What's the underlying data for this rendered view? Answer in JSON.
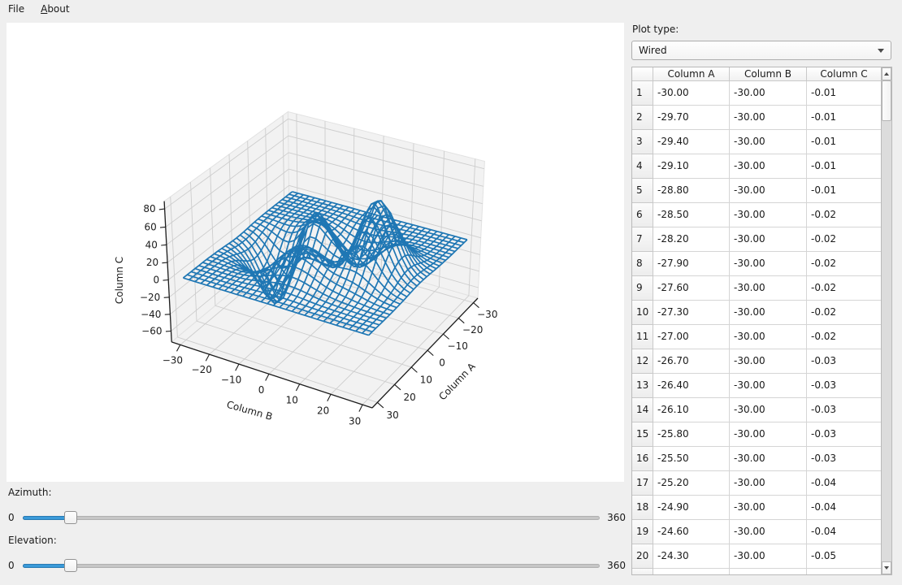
{
  "menu": {
    "file_label": "File",
    "about_mnemonic": "A",
    "about_rest": "bout"
  },
  "controls": {
    "azimuth_label": "Azimuth:",
    "azimuth_min": "0",
    "azimuth_max": "360",
    "azimuth_value": 30,
    "elevation_label": "Elevation:",
    "elevation_min": "0",
    "elevation_max": "360",
    "elevation_value": 30,
    "accent_color": "#3a9ad9"
  },
  "right_panel": {
    "plot_type_label": "Plot type:",
    "plot_type_value": "Wired",
    "table": {
      "columns": [
        "Column A",
        "Column B",
        "Column C"
      ],
      "rows": [
        [
          "1",
          "-30.00",
          "-30.00",
          "-0.01"
        ],
        [
          "2",
          "-29.70",
          "-30.00",
          "-0.01"
        ],
        [
          "3",
          "-29.40",
          "-30.00",
          "-0.01"
        ],
        [
          "4",
          "-29.10",
          "-30.00",
          "-0.01"
        ],
        [
          "5",
          "-28.80",
          "-30.00",
          "-0.01"
        ],
        [
          "6",
          "-28.50",
          "-30.00",
          "-0.02"
        ],
        [
          "7",
          "-28.20",
          "-30.00",
          "-0.02"
        ],
        [
          "8",
          "-27.90",
          "-30.00",
          "-0.02"
        ],
        [
          "9",
          "-27.60",
          "-30.00",
          "-0.02"
        ],
        [
          "10",
          "-27.30",
          "-30.00",
          "-0.02"
        ],
        [
          "11",
          "-27.00",
          "-30.00",
          "-0.02"
        ],
        [
          "12",
          "-26.70",
          "-30.00",
          "-0.03"
        ],
        [
          "13",
          "-26.40",
          "-30.00",
          "-0.03"
        ],
        [
          "14",
          "-26.10",
          "-30.00",
          "-0.03"
        ],
        [
          "15",
          "-25.80",
          "-30.00",
          "-0.03"
        ],
        [
          "16",
          "-25.50",
          "-30.00",
          "-0.03"
        ],
        [
          "17",
          "-25.20",
          "-30.00",
          "-0.04"
        ],
        [
          "18",
          "-24.90",
          "-30.00",
          "-0.04"
        ],
        [
          "19",
          "-24.60",
          "-30.00",
          "-0.04"
        ],
        [
          "20",
          "-24.30",
          "-30.00",
          "-0.05"
        ]
      ]
    }
  },
  "chart_data": {
    "type": "wireframe-3d",
    "title": "",
    "axes": {
      "a": {
        "label": "Column A",
        "ticks": [
          30,
          20,
          10,
          0,
          -10,
          -20,
          -30
        ],
        "range": [
          -33,
          33
        ]
      },
      "b": {
        "label": "Column B",
        "ticks": [
          -30,
          -20,
          -10,
          0,
          10,
          20,
          30
        ],
        "range": [
          -33,
          33
        ]
      },
      "c": {
        "label": "Column C",
        "ticks": [
          -60,
          -40,
          -20,
          0,
          20,
          40,
          60,
          80
        ],
        "range": [
          -73,
          88.5
        ]
      }
    },
    "view": {
      "azimuth": 30,
      "elevation": 30
    },
    "surface": {
      "formula": "C = 10 * peaks(A/10, B/10)",
      "domain": [
        -30,
        30
      ],
      "grid_lines": 31
    },
    "wire_color": "#1f77b4",
    "pane_color": "#f2f2f2",
    "pane_edge_color": "#e2e2e2",
    "grid_color": "#cdcdcd",
    "axis_color": "#1c1c1c",
    "grid": "on",
    "legend": "none"
  }
}
